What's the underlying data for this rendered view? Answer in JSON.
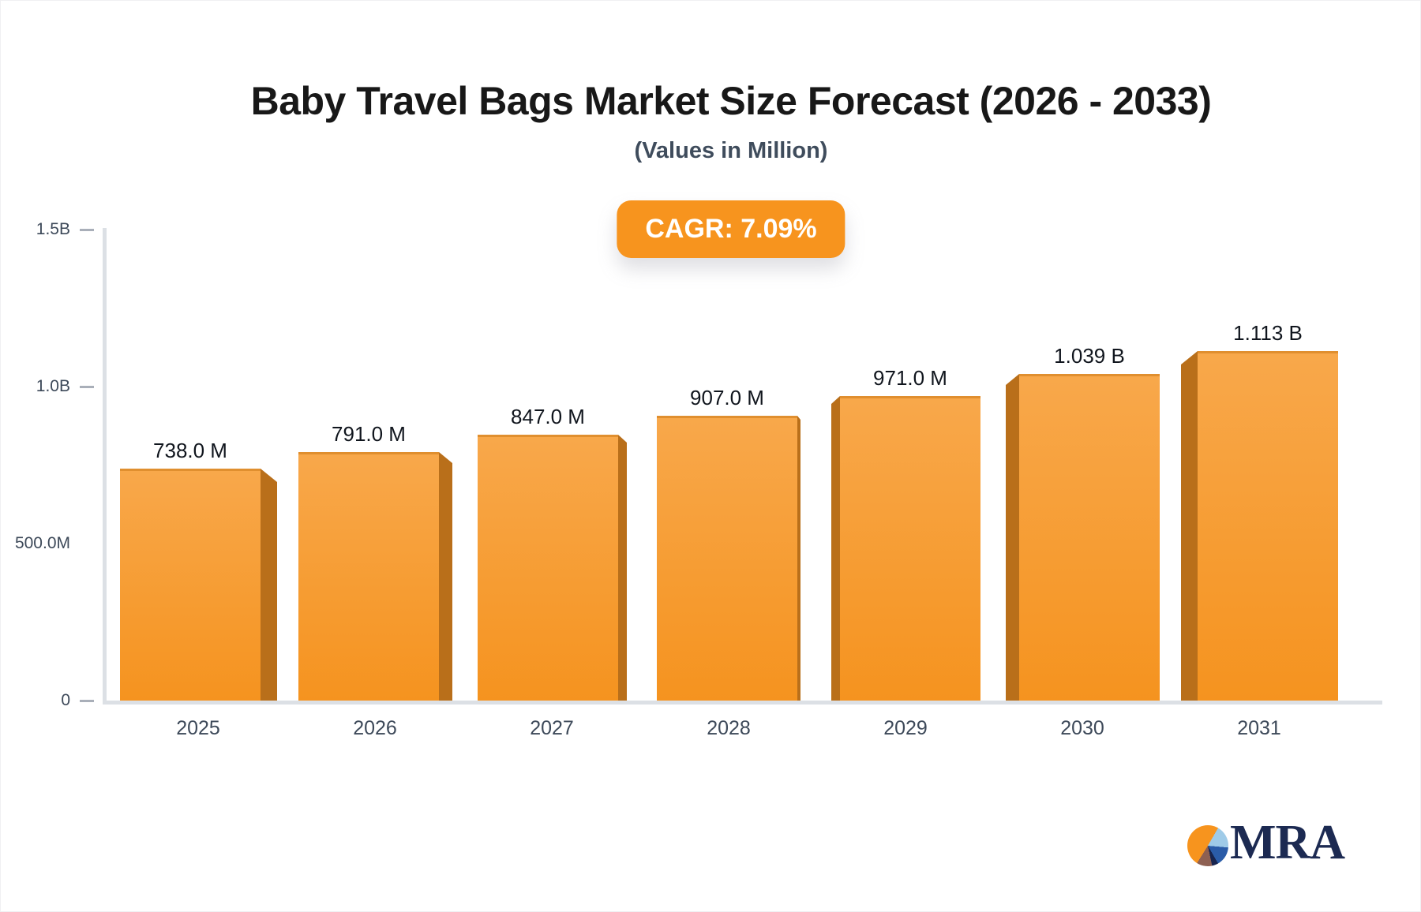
{
  "header": {
    "title": "Baby Travel Bags Market Size Forecast (2026 - 2033)",
    "subtitle": "(Values in Million)",
    "cagr_badge": "CAGR: 7.09%"
  },
  "chart_data": {
    "type": "bar",
    "title": "Baby Travel Bags Market Size Forecast (2026 - 2033)",
    "subtitle": "(Values in Million)",
    "cagr_percent": 7.09,
    "categories": [
      "2025",
      "2026",
      "2027",
      "2028",
      "2029",
      "2030",
      "2031"
    ],
    "values_million": [
      738,
      791,
      847,
      907,
      971,
      1039,
      1113
    ],
    "value_labels": [
      "738.0 M",
      "791.0 M",
      "847.0 M",
      "907.0 M",
      "971.0 M",
      "1.039 B",
      "1.113 B"
    ],
    "ylim_million": [
      0,
      1500
    ],
    "y_ticks": [
      {
        "label": "1.5B",
        "value_million": 1500,
        "dash": true
      },
      {
        "label": "1.0B",
        "value_million": 1000,
        "dash": true
      },
      {
        "label": "500.0M",
        "value_million": 500,
        "dash": false
      },
      {
        "label": "0",
        "value_million": 0,
        "dash": true
      }
    ],
    "grid": false,
    "legend": false,
    "bar_style": "3d-extruded",
    "xlabel": "",
    "ylabel": ""
  },
  "colors": {
    "page_bg": "#FFFFFF",
    "badge_bg": "#F7941E",
    "badge_text": "#FFFFFF",
    "bar_face_top": "#F8A84B",
    "bar_face_bottom": "#F5931F",
    "bar_side": "#B96F1A",
    "axis_line": "#DCE0E5",
    "tick_dash": "#A9AFB9",
    "title_text": "#181818",
    "subtitle_text": "#3F4C5C",
    "value_label_text": "#10151D",
    "axis_label_text": "#3D4959",
    "logo_navy": "#1C2A52",
    "pie_orange": "#F7941E",
    "pie_light_blue": "#9FCBE8",
    "pie_blue": "#2A5CA8",
    "pie_navy": "#17244E",
    "pie_brown": "#8E6052"
  },
  "logo": {
    "text": "MRA",
    "icon": "pie-chart-logo-icon"
  }
}
